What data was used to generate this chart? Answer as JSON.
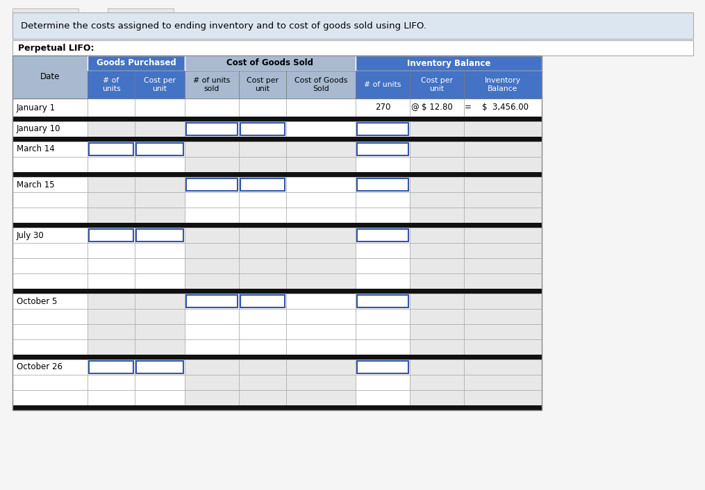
{
  "title_text": "Determine the costs assigned to ending inventory and to cost of goods sold using LIFO.",
  "subtitle_text": "Perpetual LIFO:",
  "title_bg": "#dce6f1",
  "subtitle_bg": "#ffffff",
  "header1_blue_bg": "#4472c4",
  "header1_gray_bg": "#a8b9d0",
  "header2_blue_bg": "#4472c4",
  "header2_gray_bg": "#a8b9d0",
  "shaded_cell_bg": "#e8e8e8",
  "white_cell_bg": "#ffffff",
  "blue_border": "#3355aa",
  "thick_sep_color": "#111111",
  "outer_bg": "#f5f5f5",
  "tab_bg": "#e0e0e0",
  "col_widths_raw": [
    108,
    68,
    72,
    78,
    68,
    100,
    78,
    78,
    112
  ],
  "sections": [
    {
      "date": "January 10",
      "purchase": false,
      "sale": true,
      "rows": 1
    },
    {
      "date": "March 14",
      "purchase": true,
      "sale": false,
      "rows": 2
    },
    {
      "date": "March 15",
      "purchase": false,
      "sale": true,
      "rows": 3
    },
    {
      "date": "July 30",
      "purchase": true,
      "sale": false,
      "rows": 4
    },
    {
      "date": "October 5",
      "purchase": false,
      "sale": true,
      "rows": 4
    },
    {
      "date": "October 26",
      "purchase": true,
      "sale": false,
      "rows": 3
    }
  ],
  "jan1_units": "270",
  "jan1_at": "@",
  "jan1_cost": "$ 12.80",
  "jan1_eq": "=",
  "jan1_balance": "$  3,456.00"
}
